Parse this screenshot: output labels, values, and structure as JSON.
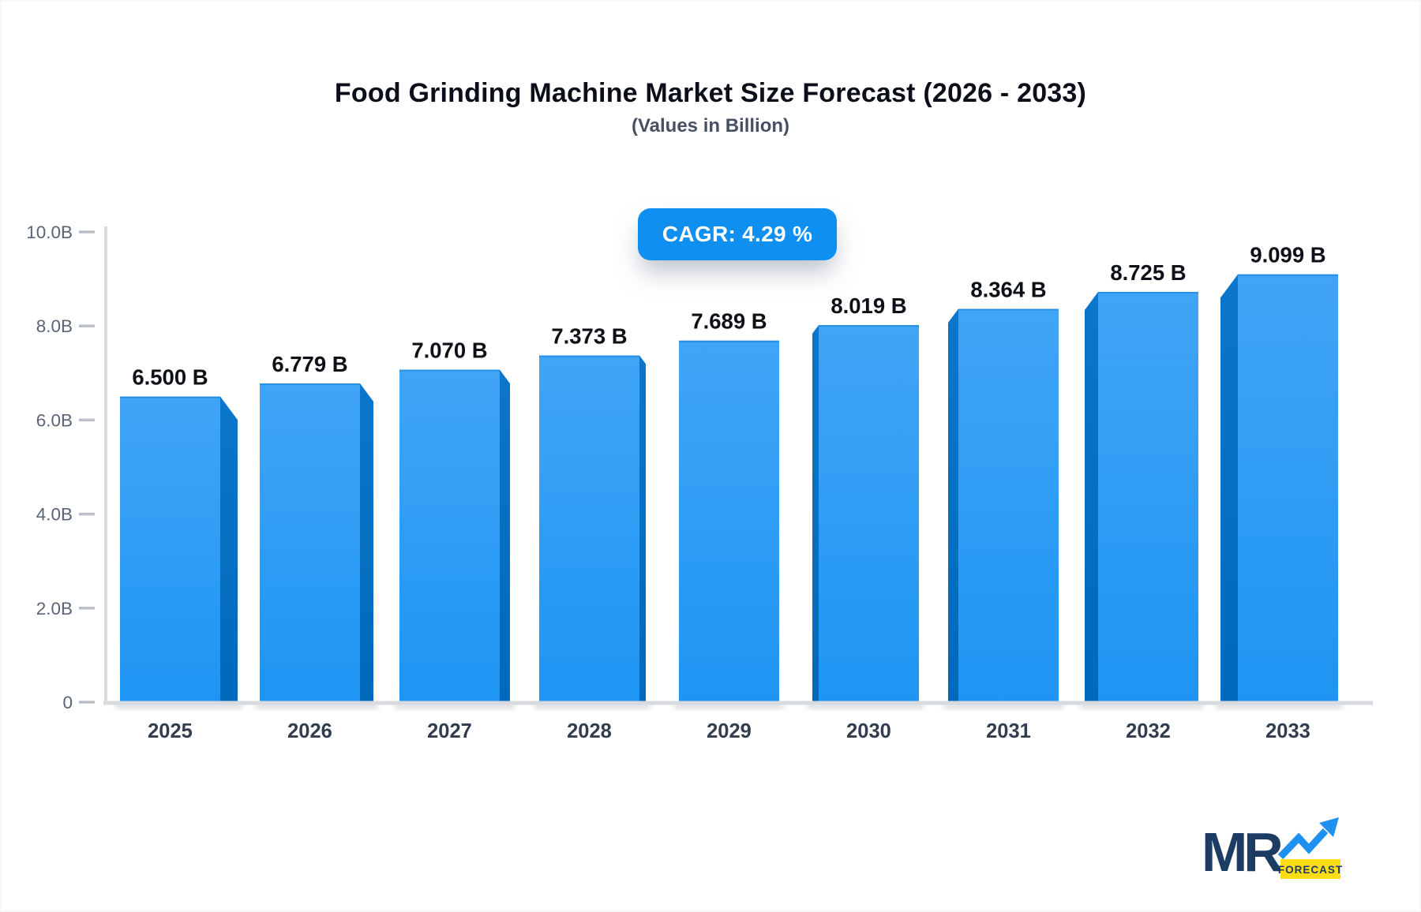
{
  "header": {
    "title": "Food Grinding Machine Market Size Forecast (2026 - 2033)",
    "subtitle": "(Values in Billion)"
  },
  "badge": {
    "label": "CAGR: 4.29 %"
  },
  "chart_data": {
    "type": "bar",
    "title": "Food Grinding Machine Market Size Forecast (2026 - 2033)",
    "subtitle": "(Values in Billion)",
    "categories": [
      "2025",
      "2026",
      "2027",
      "2028",
      "2029",
      "2030",
      "2031",
      "2032",
      "2033"
    ],
    "values": [
      6.5,
      6.779,
      7.07,
      7.373,
      7.689,
      8.019,
      8.364,
      8.725,
      9.099
    ],
    "value_labels": [
      "6.500 B",
      "6.779 B",
      "7.070 B",
      "7.373 B",
      "7.689 B",
      "8.019 B",
      "8.364 B",
      "8.725 B",
      "9.099 B"
    ],
    "xlabel": "",
    "ylabel": "",
    "ylim": [
      0,
      10
    ],
    "yticks": {
      "values": [
        10,
        8,
        6,
        4,
        2,
        0
      ],
      "labels": [
        "10.0B",
        "8.0B",
        "6.0B",
        "4.0B",
        "2.0B",
        "0"
      ]
    },
    "grid": false,
    "legend": false,
    "bar_style": "3d-perspective",
    "colors": {
      "bar_face_top": "#41a5f6",
      "bar_face_bottom": "#1d95f4",
      "bar_side": "#0070c2",
      "axis_line": "#d7dade",
      "tick_dash": "#b9bfc8",
      "y_label": "#5b6474",
      "x_label": "#323d4e",
      "value_label": "#0d1117"
    }
  },
  "colors": {
    "accent_blue": "#0f90f0",
    "background": "#ffffff"
  },
  "logo": {
    "text": "MR",
    "sub": "FORECAST",
    "navy": "#1d3c63",
    "blue": "#1e90f0",
    "yellow": "#ffdd15"
  }
}
